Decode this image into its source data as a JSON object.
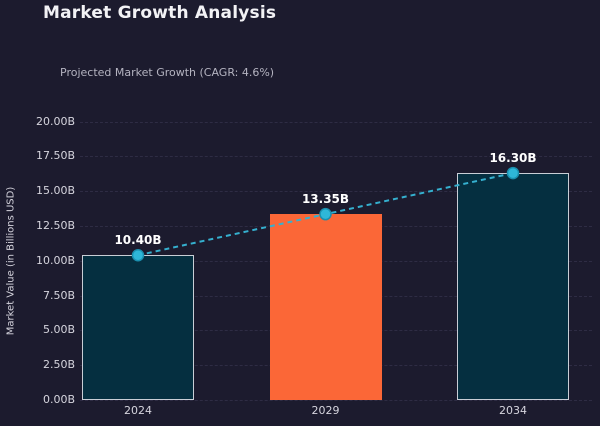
{
  "chart_data": {
    "type": "bar",
    "title": "Market Growth Analysis",
    "subtitle": "Projected Market Growth (CAGR: 4.6%)",
    "categories": [
      "2024",
      "2029",
      "2034"
    ],
    "values": [
      10.4,
      13.35,
      16.3
    ],
    "value_labels": [
      "10.40B",
      "13.35B",
      "16.30B"
    ],
    "xlabel": "",
    "ylabel": "Market Value (in Billions USD)",
    "ylim": [
      0,
      20
    ],
    "ytick_step": 2.5,
    "ytick_labels": [
      "0.00B",
      "2.50B",
      "5.00B",
      "7.50B",
      "10.00B",
      "12.50B",
      "15.00B",
      "17.50B",
      "20.00B"
    ],
    "grid": true,
    "grid_style": "dashed",
    "legend": "none",
    "overlay": {
      "type": "line",
      "style": "dashed",
      "markers": true,
      "x": [
        "2024",
        "2029",
        "2034"
      ],
      "y": [
        10.4,
        13.35,
        16.3
      ]
    },
    "highlight_index": 1,
    "colors": {
      "background": "#1c1b2e",
      "bar_fill": "#052f40",
      "bar_border": "#c9ced6",
      "bar_highlight": "#fb6737",
      "trend_line": "#35b0cf",
      "marker_fill": "#2eb7d8",
      "marker_edge": "#1a8fae",
      "grid": "#2e2c44",
      "title_text": "#f2f2f5",
      "subtitle_text": "#b4b3c0",
      "tick_text": "#d6d5de",
      "value_text": "#ffffff"
    }
  }
}
